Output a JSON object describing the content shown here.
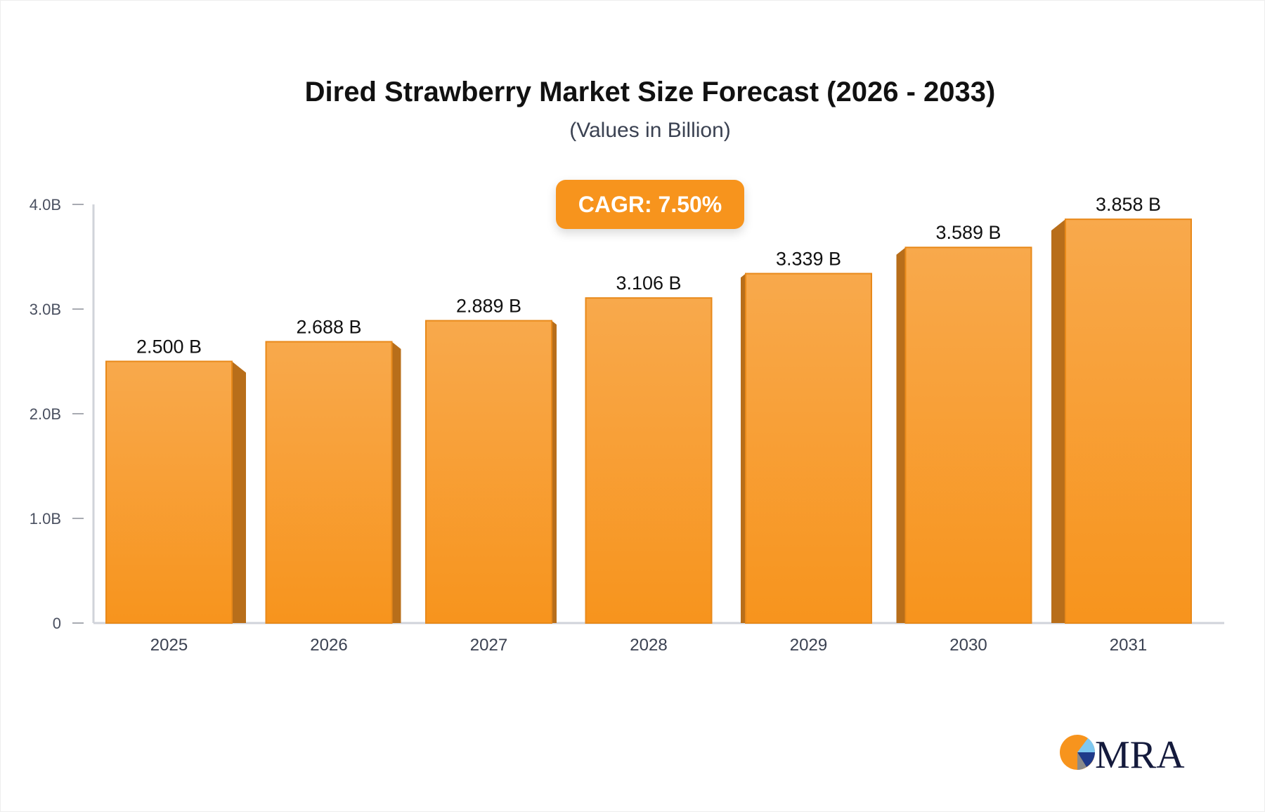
{
  "chart_data": {
    "type": "bar",
    "title": "Dired Strawberry Market Size Forecast (2026 - 2033)",
    "subtitle": "(Values in Billion)",
    "annotation": "CAGR: 7.50%",
    "categories": [
      "2025",
      "2026",
      "2027",
      "2028",
      "2029",
      "2030",
      "2031"
    ],
    "values": [
      2.5,
      2.688,
      2.889,
      3.106,
      3.339,
      3.589,
      3.858
    ],
    "data_labels": [
      "2.500 B",
      "2.688 B",
      "2.889 B",
      "3.106 B",
      "3.339 B",
      "3.589 B",
      "3.858 B"
    ],
    "yticks": [
      0,
      1,
      2,
      3,
      4
    ],
    "ytick_labels": [
      "0",
      "1.0B",
      "2.0B",
      "3.0B",
      "4.0B"
    ],
    "ylim": [
      0,
      4
    ],
    "xlabel": "",
    "ylabel": "",
    "grid": false,
    "colors": {
      "bar_top": "#f8a94c",
      "bar_bottom": "#f7941d",
      "bar_side": "#b86e1a",
      "axis": "#d0d3da",
      "badge": "#f7941d"
    }
  },
  "logo": {
    "text": "MRA"
  }
}
